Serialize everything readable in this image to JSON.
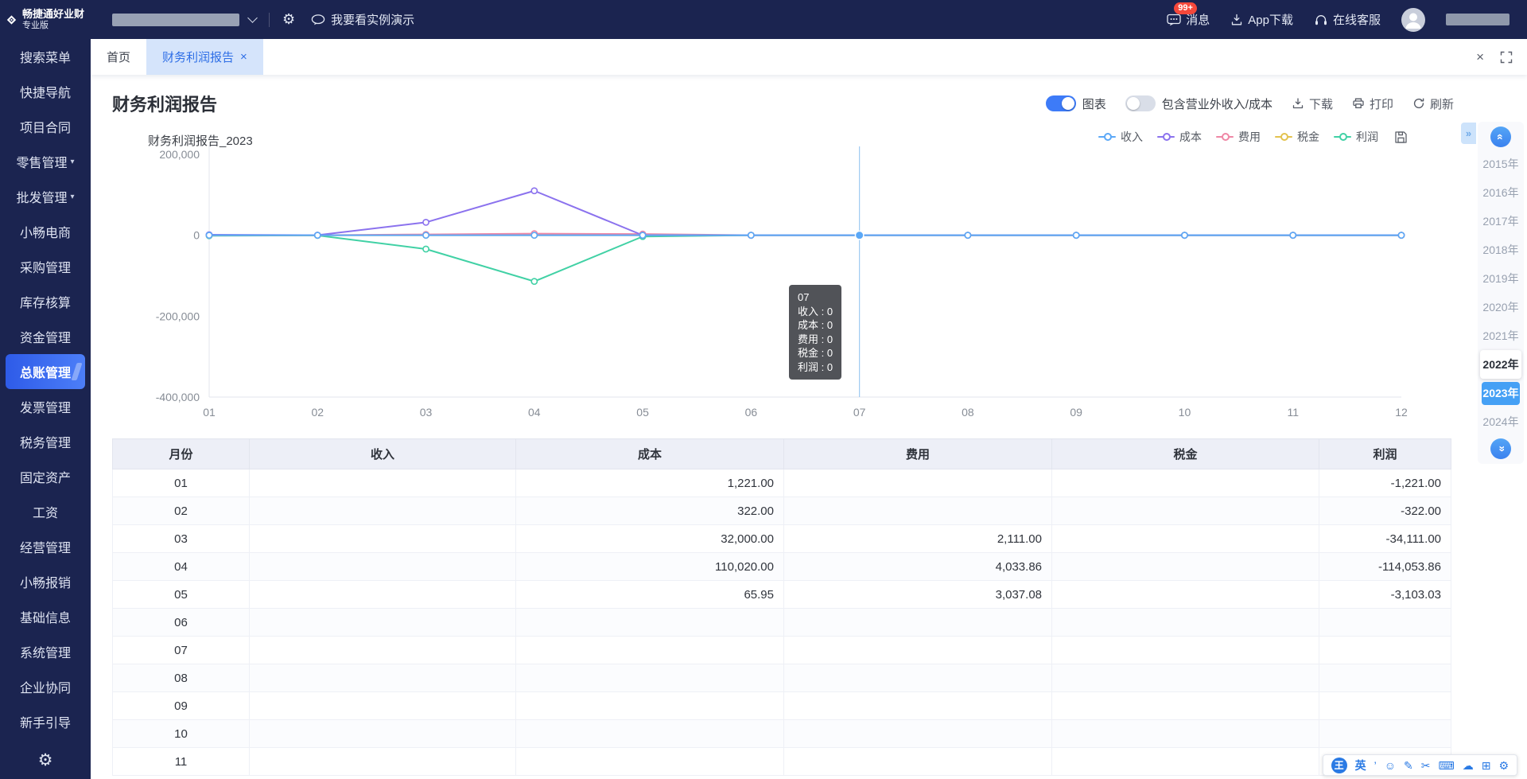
{
  "app": {
    "logo_title": "畅捷通好业财",
    "logo_subtitle": "专业版"
  },
  "topbar": {
    "company_name": "",
    "demo_label": "我要看实例演示",
    "messages_label": "消息",
    "messages_badge": "99+",
    "app_download_label": "App下载",
    "support_label": "在线客服",
    "username": ""
  },
  "sidebar": {
    "items": [
      {
        "label": "搜索菜单"
      },
      {
        "label": "快捷导航"
      },
      {
        "label": "项目合同"
      },
      {
        "label": "零售管理",
        "expandable": true
      },
      {
        "label": "批发管理",
        "expandable": true
      },
      {
        "label": "小畅电商"
      },
      {
        "label": "采购管理"
      },
      {
        "label": "库存核算"
      },
      {
        "label": "资金管理"
      },
      {
        "label": "总账管理",
        "active": true
      },
      {
        "label": "发票管理"
      },
      {
        "label": "税务管理"
      },
      {
        "label": "固定资产"
      },
      {
        "label": "工资"
      },
      {
        "label": "经营管理"
      },
      {
        "label": "小畅报销"
      },
      {
        "label": "基础信息"
      },
      {
        "label": "系统管理"
      },
      {
        "label": "企业协同"
      },
      {
        "label": "新手引导"
      }
    ]
  },
  "tabs": [
    {
      "label": "首页",
      "active": false,
      "closable": false
    },
    {
      "label": "财务利润报告",
      "active": true,
      "closable": true
    }
  ],
  "page": {
    "title": "财务利润报告",
    "toggles": [
      {
        "label": "图表",
        "on": true
      },
      {
        "label": "包含营业外收入/成本",
        "on": false
      }
    ],
    "actions": [
      {
        "label": "下载"
      },
      {
        "label": "打印"
      },
      {
        "label": "刷新"
      }
    ]
  },
  "chart_data": {
    "type": "line",
    "title": "财务利润报告_2023",
    "categories": [
      "01",
      "02",
      "03",
      "04",
      "05",
      "06",
      "07",
      "08",
      "09",
      "10",
      "11",
      "12"
    ],
    "series": [
      {
        "name": "收入",
        "color": "#5ba8f7",
        "values": [
          0,
          0,
          0,
          0,
          0,
          0,
          0,
          0,
          0,
          0,
          0,
          0
        ]
      },
      {
        "name": "成本",
        "color": "#8b72ee",
        "values": [
          1221,
          322,
          32000,
          110020,
          65.95,
          0,
          0,
          0,
          0,
          0,
          0,
          0
        ]
      },
      {
        "name": "费用",
        "color": "#ef87a5",
        "values": [
          0,
          0,
          2111,
          4033.86,
          3037.08,
          0,
          0,
          0,
          0,
          0,
          0,
          0
        ]
      },
      {
        "name": "税金",
        "color": "#e3c24e",
        "values": [
          0,
          0,
          0,
          0,
          0,
          0,
          0,
          0,
          0,
          0,
          0,
          0
        ]
      },
      {
        "name": "利润",
        "color": "#41d1a5",
        "values": [
          -1221,
          -322,
          -34111,
          -114053.86,
          -3103.03,
          0,
          0,
          0,
          0,
          0,
          0,
          0
        ]
      }
    ],
    "ylim": [
      -400000,
      200000
    ],
    "y_ticks": [
      {
        "value": 200000,
        "label": "200,000"
      },
      {
        "value": 0,
        "label": "0"
      },
      {
        "value": -200000,
        "label": "-200,000"
      },
      {
        "value": -400000,
        "label": "-400,000"
      }
    ],
    "legend_position": "top-right",
    "grid": false,
    "tooltip": {
      "month": "07",
      "rows": [
        {
          "name": "收入",
          "value": "0"
        },
        {
          "name": "成本",
          "value": "0"
        },
        {
          "name": "费用",
          "value": "0"
        },
        {
          "name": "税金",
          "value": "0"
        },
        {
          "name": "利润",
          "value": "0"
        }
      ]
    }
  },
  "year_panel": {
    "years": [
      "2015年",
      "2016年",
      "2017年",
      "2018年",
      "2019年",
      "2020年",
      "2021年",
      "2022年",
      "2023年",
      "2024年"
    ],
    "selected_index": 8,
    "highlighted_index": 7
  },
  "table": {
    "headers": [
      "月份",
      "收入",
      "成本",
      "费用",
      "税金",
      "利润"
    ],
    "rows": [
      [
        "01",
        "",
        "1,221.00",
        "",
        "",
        "-1,221.00"
      ],
      [
        "02",
        "",
        "322.00",
        "",
        "",
        "-322.00"
      ],
      [
        "03",
        "",
        "32,000.00",
        "2,111.00",
        "",
        "-34,111.00"
      ],
      [
        "04",
        "",
        "110,020.00",
        "4,033.86",
        "",
        "-114,053.86"
      ],
      [
        "05",
        "",
        "65.95",
        "3,037.08",
        "",
        "-3,103.03"
      ],
      [
        "06",
        "",
        "",
        "",
        "",
        ""
      ],
      [
        "07",
        "",
        "",
        "",
        "",
        ""
      ],
      [
        "08",
        "",
        "",
        "",
        "",
        ""
      ],
      [
        "09",
        "",
        "",
        "",
        "",
        ""
      ],
      [
        "10",
        "",
        "",
        "",
        "",
        ""
      ],
      [
        "11",
        "",
        "",
        "",
        "",
        ""
      ]
    ]
  },
  "ime_bar": {
    "logo": "王",
    "mode": "英",
    "icons": [
      "’",
      "☺",
      "✎",
      "✂",
      "⌨",
      "☁",
      "⊞",
      "⚙"
    ]
  }
}
